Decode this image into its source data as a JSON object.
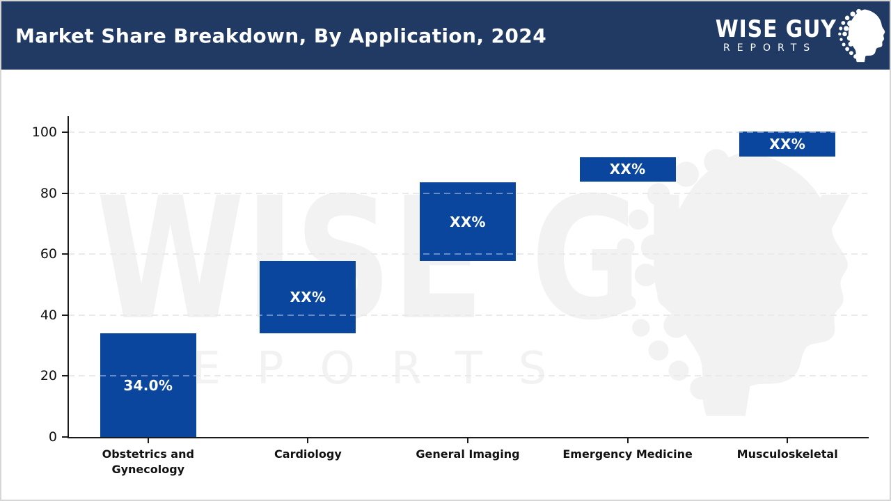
{
  "header": {
    "title": "Market Share Breakdown, By Application, 2024",
    "logo": {
      "wordmark": "WISE GUY",
      "subtitle": "REPORTS"
    }
  },
  "watermark": {
    "wordmark": "WISE GUY",
    "subtitle": "REPORTS"
  },
  "chart_data": {
    "type": "bar",
    "subtype": "waterfall",
    "title": "Market Share Breakdown, By Application, 2024",
    "categories": [
      "Obstetrics and Gynecology",
      "Cardiology",
      "General Imaging",
      "Emergency Medicine",
      "Musculoskeletal"
    ],
    "segments": [
      {
        "category": "Obstetrics and Gynecology",
        "start": 0,
        "end": 34.0,
        "label": "34.0%"
      },
      {
        "category": "Cardiology",
        "start": 34.0,
        "end": 57.8,
        "label": "XX%"
      },
      {
        "category": "General Imaging",
        "start": 57.8,
        "end": 83.5,
        "label": "XX%"
      },
      {
        "category": "Emergency Medicine",
        "start": 83.8,
        "end": 91.8,
        "label": "XX%"
      },
      {
        "category": "Musculoskeletal",
        "start": 92.0,
        "end": 100.2,
        "label": "XX%"
      }
    ],
    "yticks": [
      0,
      20,
      40,
      60,
      80,
      100
    ],
    "ylim": [
      0,
      105
    ],
    "xlabel": "",
    "ylabel": "",
    "grid": "horizontal-dashed",
    "legend": "none",
    "bar_color": "#0A469E",
    "value_label_color": "#FFFFFF"
  },
  "colors": {
    "header_bg": "#213A64",
    "bar": "#0A469E",
    "axis": "#1A1A1A",
    "grid": "#DEDEDE",
    "watermark": "#F2F2F2",
    "page_border": "#D6D6D6",
    "title_text": "#FFFFFF",
    "tick_text": "#111111"
  }
}
